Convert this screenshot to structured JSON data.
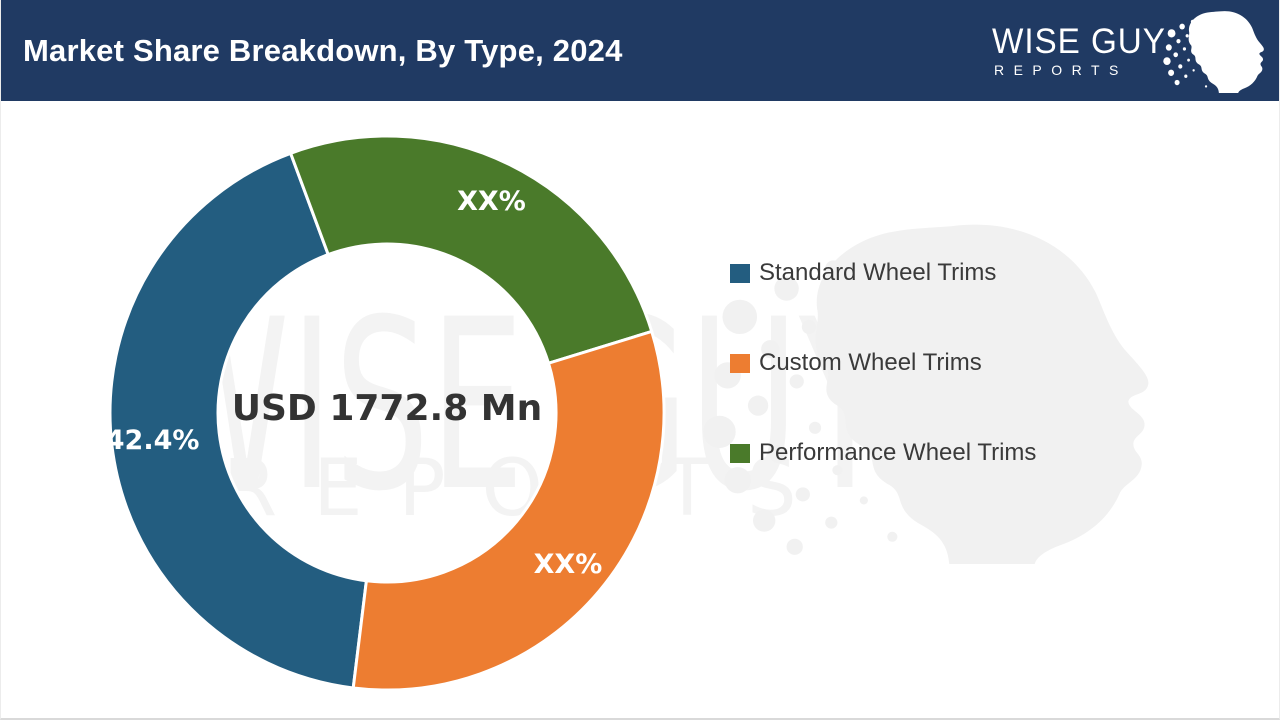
{
  "header": {
    "title": "Market Share Breakdown, By Type, 2024",
    "bg_color": "#203a63",
    "logo": {
      "line1": "WISE GUY",
      "line2": "REPORTS"
    }
  },
  "chart_data": {
    "type": "pie",
    "subtype": "donut",
    "title": "Market Share Breakdown, By Type, 2024",
    "center_label": "USD 1772.8 Mn",
    "rotation_deg_clockwise_from_top": 187,
    "draw_order": [
      "standard",
      "performance",
      "custom"
    ],
    "legend_position": "right",
    "slices": [
      {
        "id": "standard",
        "label": "Standard Wheel Trims",
        "value_pct": 42.4,
        "displayed_value": "42.4%",
        "color": "#235d80"
      },
      {
        "id": "custom",
        "label": "Custom Wheel Trims",
        "value_pct": 31.7,
        "displayed_value": "XX%",
        "color": "#ed7d31"
      },
      {
        "id": "performance",
        "label": "Performance Wheel Trims",
        "value_pct": 25.9,
        "displayed_value": "XX%",
        "color": "#4a7a2a"
      }
    ]
  },
  "watermark": {
    "line1": "WISE GUY",
    "line2": "REPORTS",
    "color": "#f3f3f3"
  }
}
